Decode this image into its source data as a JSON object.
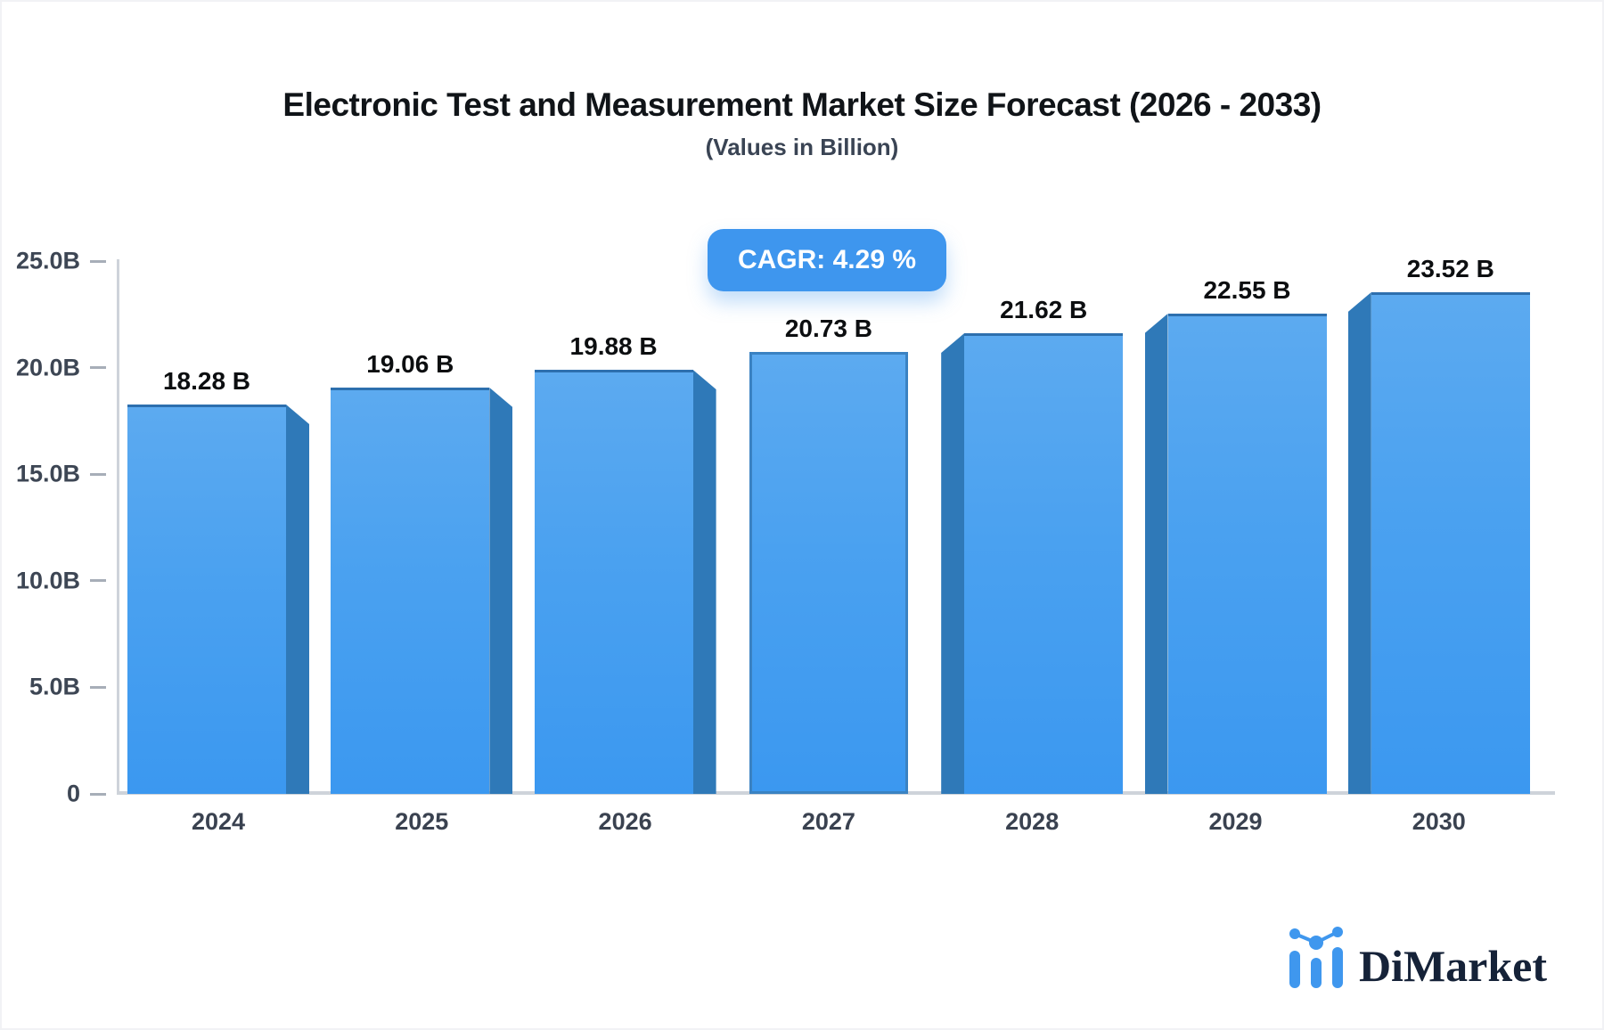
{
  "title": "Electronic Test and Measurement Market Size Forecast (2026 - 2033)",
  "subtitle": "(Values in Billion)",
  "badge": {
    "label": "CAGR: 4.29 %"
  },
  "chart_data": {
    "type": "bar",
    "title": "Electronic Test and Measurement Market Size Forecast (2026 - 2033)",
    "subtitle": "(Values in Billion)",
    "cagr": "4.29 %",
    "categories": [
      "2024",
      "2025",
      "2026",
      "2027",
      "2028",
      "2029",
      "2030"
    ],
    "values": [
      18.28,
      19.06,
      19.88,
      20.73,
      21.62,
      22.55,
      23.52
    ],
    "value_labels": [
      "18.28 B",
      "19.06 B",
      "19.88 B",
      "20.73 B",
      "21.62 B",
      "22.55 B",
      "23.52 B"
    ],
    "y_ticks": [
      {
        "label": "25.0B",
        "value": 25
      },
      {
        "label": "20.0B",
        "value": 20
      },
      {
        "label": "15.0B",
        "value": 15
      },
      {
        "label": "10.0B",
        "value": 10
      },
      {
        "label": "5.0B",
        "value": 5
      },
      {
        "label": "0",
        "value": 0
      }
    ],
    "ylim": [
      0,
      25
    ],
    "unit": "B",
    "grid": "off",
    "legend": "none",
    "bar_style": "3d-perspective",
    "colors": {
      "bar_face_top": "#5caaf0",
      "bar_face_bottom": "#3b98f0",
      "bar_face_edge": "#2d6fae",
      "bar_side": "#2f79b8",
      "axis_line": "#ced3da",
      "tick": "#a7aeb8",
      "tick_label": "#3d4654",
      "value_label": "#0c0e10",
      "badge_bg": "#3e96ee",
      "badge_text": "#ffffff",
      "brand_blue": "#3f97ee",
      "brand_navy": "#152238"
    }
  },
  "footer": {
    "brand": "DiMarket",
    "logo_icon": "mini-bar-line-chart-icon"
  }
}
